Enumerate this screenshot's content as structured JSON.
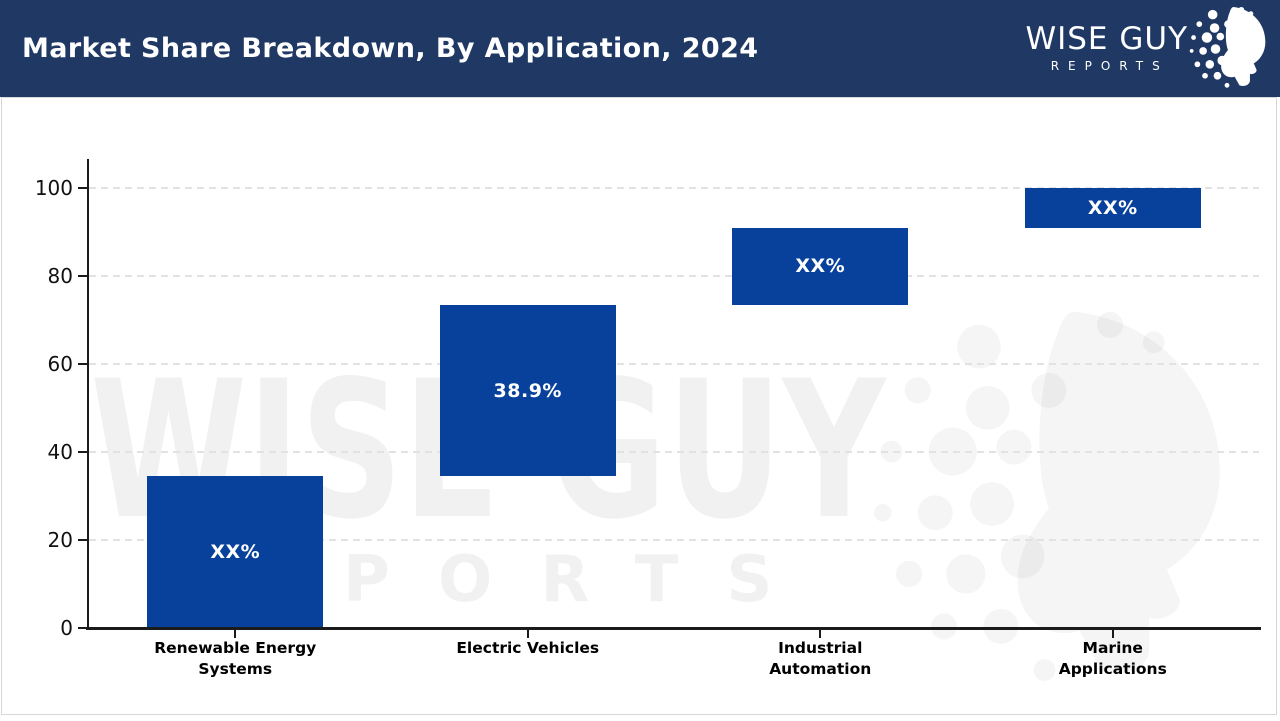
{
  "header": {
    "title": "Market Share Breakdown, By Application, 2024",
    "bg_color": "#1f3864",
    "logo": {
      "line1": "WISE GUY",
      "line2": "REPORTS"
    }
  },
  "watermark": {
    "line1": "WISE GUY",
    "line2": "REPORTS"
  },
  "chart_data": {
    "type": "bar",
    "subtype": "floating-waterfall-columns",
    "title": "Market Share Breakdown, By Application, 2024",
    "categories": [
      "Renewable Energy Systems",
      "Electric Vehicles",
      "Industrial Automation",
      "Marine Applications"
    ],
    "bars": [
      {
        "category": "Renewable Energy Systems",
        "label_lines": [
          "Renewable Energy",
          "Systems"
        ],
        "start": 0,
        "end": 34.5,
        "label": "XX%"
      },
      {
        "category": "Electric Vehicles",
        "label_lines": [
          "Electric Vehicles"
        ],
        "start": 34.5,
        "end": 73.4,
        "label": "38.9%"
      },
      {
        "category": "Industrial Automation",
        "label_lines": [
          "Industrial",
          "Automation"
        ],
        "start": 73.4,
        "end": 91.0,
        "label": "XX%"
      },
      {
        "category": "Marine Applications",
        "label_lines": [
          "Marine",
          "Applications"
        ],
        "start": 91.0,
        "end": 100.0,
        "label": "XX%"
      }
    ],
    "yticks": [
      0,
      20,
      40,
      60,
      80,
      100
    ],
    "ylim": [
      0,
      106
    ],
    "xlabel": "",
    "ylabel": "",
    "bar_color": "#08419c",
    "bar_label_color": "#ffffff",
    "grid": "horizontal-dashed",
    "legend": "none"
  }
}
